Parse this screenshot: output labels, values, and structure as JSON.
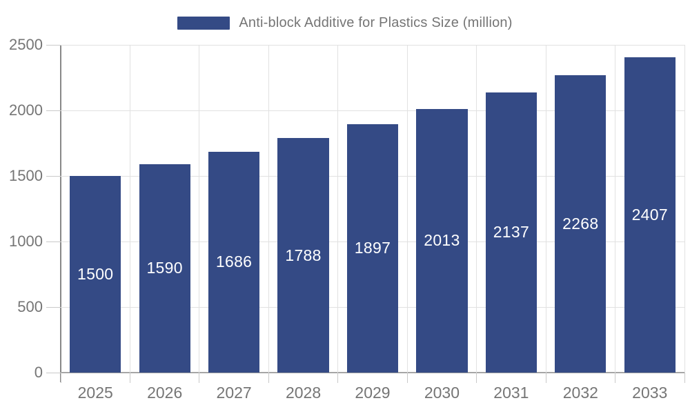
{
  "legend": {
    "label": "Anti-block Additive for Plastics Size (million)"
  },
  "chart_data": {
    "type": "bar",
    "title": "Anti-block Additive for Plastics Size (million)",
    "categories": [
      "2025",
      "2026",
      "2027",
      "2028",
      "2029",
      "2030",
      "2031",
      "2032",
      "2033"
    ],
    "values": [
      1500,
      1590,
      1686,
      1788,
      1897,
      2013,
      2137,
      2268,
      2407
    ],
    "xlabel": "",
    "ylabel": "",
    "ylim": [
      0,
      2500
    ],
    "yticks": [
      0,
      500,
      1000,
      1500,
      2000,
      2500
    ],
    "grid": true,
    "legend_position": "top-center",
    "value_labels": "inside-center",
    "colors": {
      "bar": "#344a85",
      "value_label": "#ffffff",
      "axis_text": "#757575",
      "gridline": "#e1e1e1",
      "axis_line_y": "#888888",
      "axis_line_x": "#a6a6a6",
      "tick": "#c9c9c9",
      "background": "#ffffff"
    }
  }
}
